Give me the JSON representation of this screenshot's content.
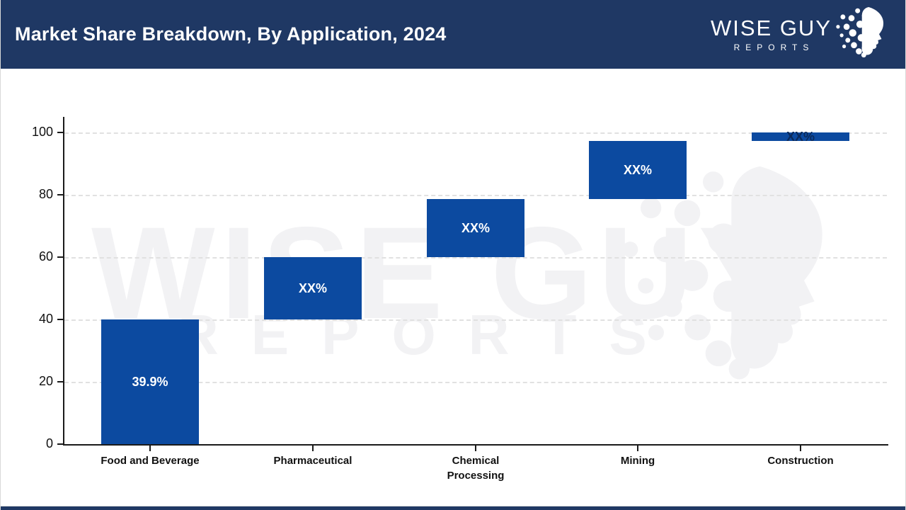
{
  "header": {
    "title": "Market Share Breakdown, By Application, 2024",
    "bg_color": "#1f3864",
    "logo": {
      "line1": "WISE GUY",
      "line2": "REPORTS"
    }
  },
  "watermark": {
    "line1": "WISE GUY",
    "line2": "REPORTS",
    "color": "#f2f2f4"
  },
  "chart_data": {
    "type": "bar",
    "subtype": "waterfall",
    "title": "Market Share Breakdown, By Application, 2024",
    "categories": [
      "Food and Beverage",
      "Pharmaceutical",
      "Chemical\nProcessing",
      "Mining",
      "Construction"
    ],
    "values": [
      39.9,
      20.1,
      18.6,
      18.6,
      2.8
    ],
    "cumulative_start": [
      0,
      39.9,
      60.0,
      78.6,
      97.2
    ],
    "cumulative_end": [
      39.9,
      60.0,
      78.6,
      97.2,
      100.0
    ],
    "bar_labels": [
      "39.9%",
      "XX%",
      "XX%",
      "XX%",
      "XX%"
    ],
    "bar_label_colors": [
      "#ffffff",
      "#ffffff",
      "#ffffff",
      "#ffffff",
      "#0b2a5b"
    ],
    "bar_color": "#0c4aa0",
    "xlabel": "",
    "ylabel": "",
    "yticks": [
      0,
      20,
      40,
      60,
      80,
      100
    ],
    "ylim": [
      0,
      105
    ],
    "grid": "horizontal-dashed",
    "grid_color": "#e1e1e1",
    "axis_color": "#1a1a1a",
    "legend": "none"
  }
}
